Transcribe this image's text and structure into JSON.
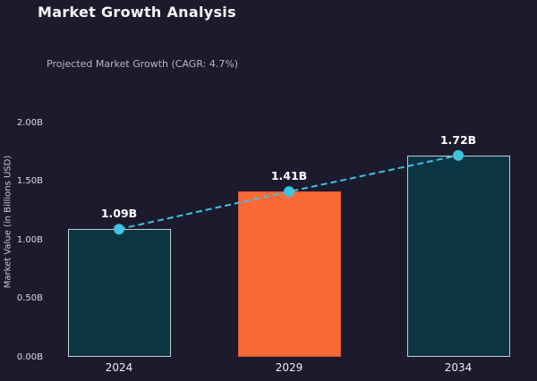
{
  "header": {
    "title": "Market Growth Analysis",
    "subtitle": "Projected Market Growth (CAGR: 4.7%)"
  },
  "chart_data": {
    "type": "bar",
    "title": "Market Growth Analysis",
    "subtitle": "Projected Market Growth (CAGR: 4.7%)",
    "categories": [
      "2024",
      "2029",
      "2034"
    ],
    "values": [
      1.09,
      1.41,
      1.72
    ],
    "value_labels": [
      "1.09B",
      "1.41B",
      "1.72B"
    ],
    "xlabel": "",
    "ylabel": "Market Value (in Billions USD)",
    "ylim": [
      0,
      2.0
    ],
    "ytick_values": [
      0,
      0.5,
      1.0,
      1.5,
      2.0
    ],
    "ytick_labels": [
      "0.00B",
      "0.50B",
      "1.00B",
      "1.50B",
      "2.00B"
    ],
    "grid": false,
    "legend": "none",
    "overlay": "dashed trend line with circular markers through bar tops",
    "colors": {
      "background": "#1c1b2e",
      "bar_fill": [
        "#0c3543",
        "#fa6a38",
        "#0c3543"
      ],
      "bar_border": [
        "#c6ccd2",
        "#e0552d",
        "#c6ccd2"
      ],
      "trend_line": "#44c0dd",
      "marker_fill": "#3fc3de",
      "title_text": "#f5f6f8",
      "subtitle_text": "#b6b6c2",
      "tick_text": "#d9dae3"
    }
  }
}
